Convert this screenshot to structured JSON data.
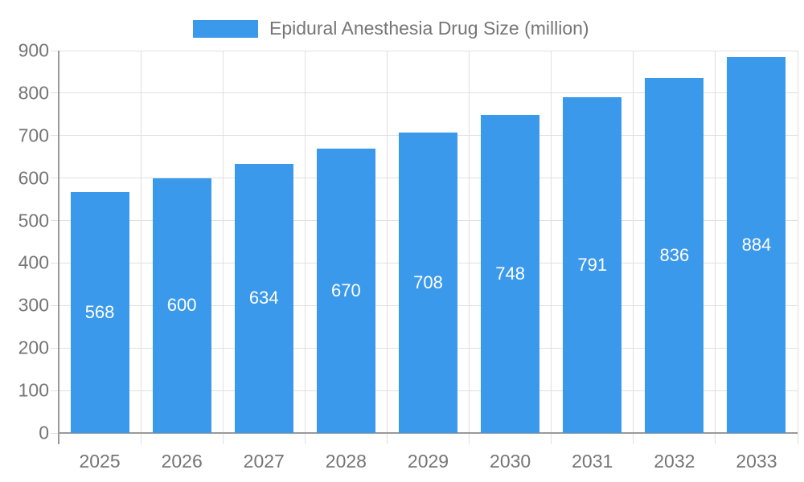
{
  "legend": {
    "label": "Epidural Anesthesia Drug Size (million)"
  },
  "chart_data": {
    "type": "bar",
    "title": "Epidural Anesthesia Drug Size (million)",
    "categories": [
      "2025",
      "2026",
      "2027",
      "2028",
      "2029",
      "2030",
      "2031",
      "2032",
      "2033"
    ],
    "values": [
      568,
      600,
      634,
      670,
      708,
      748,
      791,
      836,
      884
    ],
    "xlabel": "",
    "ylabel": "",
    "ylim": [
      0,
      900
    ],
    "ytick_step": 100,
    "grid": true,
    "legend_position": "top",
    "colors": {
      "bar": "#3B99EC",
      "value_label": "#ffffff",
      "axis": "#999999",
      "grid": "#e0e0e0",
      "text": "#757575"
    }
  }
}
